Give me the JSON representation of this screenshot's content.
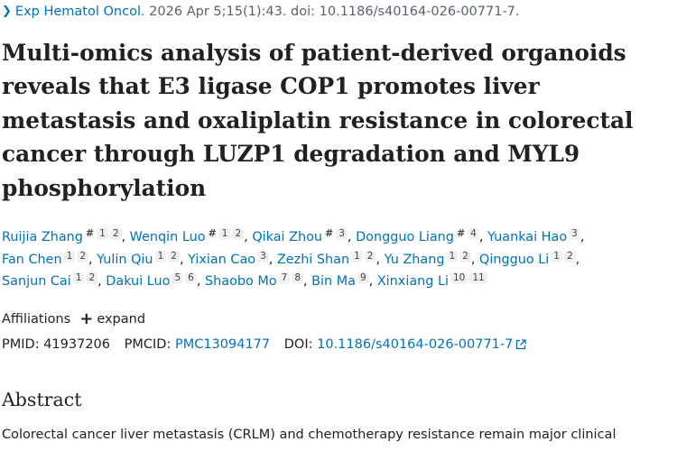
{
  "citation": {
    "journal": "Exp Hematol Oncol.",
    "rest": " 2026 Apr 5;15(1):43. doi: 10.1186/s40164-026-00771-7."
  },
  "title": "Multi-omics analysis of patient-derived organoids reveals that E3 ligase COP1 promotes liver metastasis and oxaliplatin resistance in colorectal cancer through LUZP1 degradation and MYL9 phosphorylation",
  "authors": [
    {
      "name": "Ruijia Zhang",
      "eq": "#",
      "aff": [
        "1",
        "2"
      ]
    },
    {
      "name": "Wenqin Luo",
      "eq": "#",
      "aff": [
        "1",
        "2"
      ]
    },
    {
      "name": "Qikai Zhou",
      "eq": "#",
      "aff": [
        "3"
      ]
    },
    {
      "name": "Dongguo Liang",
      "eq": "#",
      "aff": [
        "4"
      ]
    },
    {
      "name": "Yuankai Hao",
      "aff": [
        "3"
      ]
    },
    {
      "name": "Fan Chen",
      "aff": [
        "1",
        "2"
      ]
    },
    {
      "name": "Yulin Qiu",
      "aff": [
        "1",
        "2"
      ]
    },
    {
      "name": "Yixian Cao",
      "aff": [
        "3"
      ]
    },
    {
      "name": "Zezhi Shan",
      "aff": [
        "1",
        "2"
      ]
    },
    {
      "name": "Yu Zhang",
      "aff": [
        "1",
        "2"
      ]
    },
    {
      "name": "Qingguo Li",
      "aff": [
        "1",
        "2"
      ]
    },
    {
      "name": "Sanjun Cai",
      "aff": [
        "1",
        "2"
      ]
    },
    {
      "name": "Dakui Luo",
      "aff": [
        "5",
        "6"
      ]
    },
    {
      "name": "Shaobo Mo",
      "aff": [
        "7",
        "8"
      ]
    },
    {
      "name": "Bin Ma",
      "aff": [
        "9"
      ]
    },
    {
      "name": "Xinxiang Li",
      "aff": [
        "10",
        "11"
      ]
    }
  ],
  "affiliations": {
    "label": "Affiliations",
    "expand_label": "expand"
  },
  "ids": {
    "pmid_label": "PMID:",
    "pmid": "41937206",
    "pmcid_label": "PMCID:",
    "pmcid": "PMC13094177",
    "doi_label": "DOI:",
    "doi": "10.1186/s40164-026-00771-7"
  },
  "abstract": {
    "heading": "Abstract",
    "text": "Colorectal cancer liver metastasis (CRLM) and chemotherapy resistance remain major clinical"
  },
  "colors": {
    "link": "#0071bc",
    "text": "#212121",
    "muted": "#5b616b",
    "badge_bg": "#f1f1f1"
  },
  "icons": [
    "chevron-right-icon",
    "plus-icon",
    "external-link-icon"
  ]
}
